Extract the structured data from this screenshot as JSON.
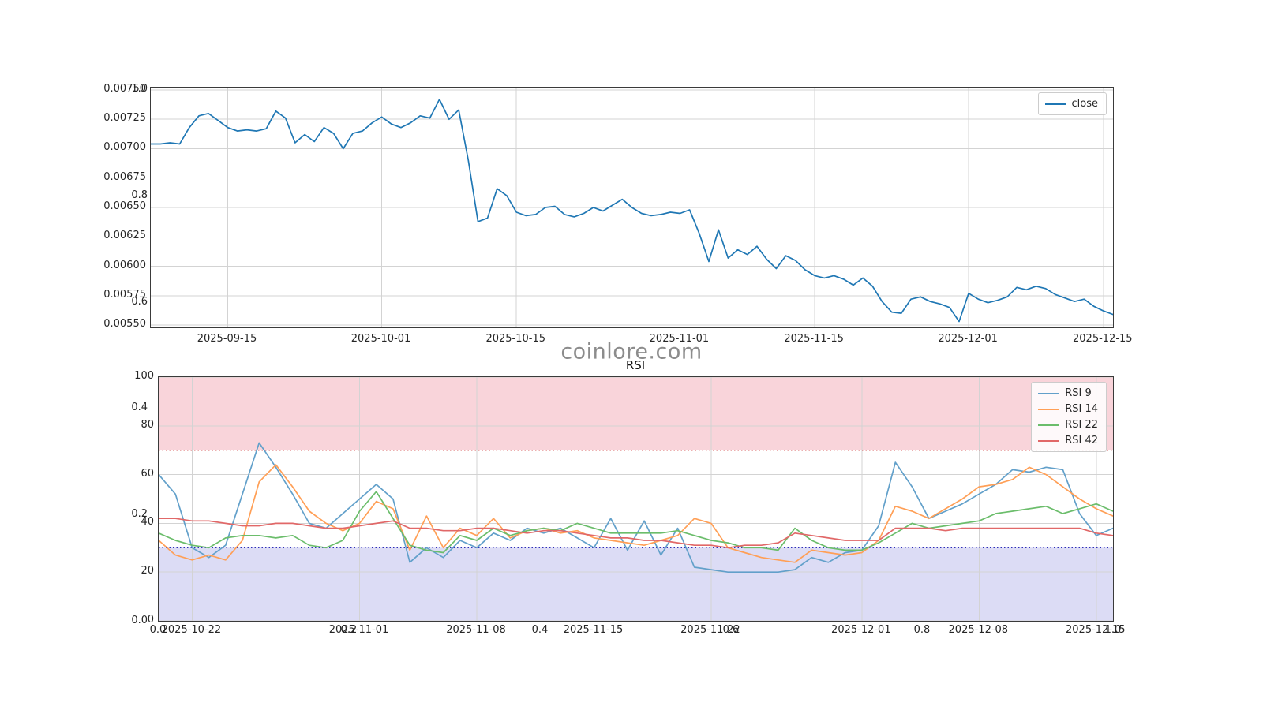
{
  "watermark": "coinlore.com",
  "colors": {
    "grid": "#d3d3d3",
    "spine": "#3a3a3a",
    "tick_text": "#262626",
    "watermark_text": "#8c8c8c",
    "background": "#ffffff"
  },
  "ghost_axis": {
    "left_labels": [
      "1.0",
      "0.8",
      "0.6",
      "0.4",
      "0.2",
      "0.0"
    ],
    "bottom_labels": [
      "0.0",
      "0.2",
      "0.4",
      "0.6",
      "0.8",
      "1.0"
    ]
  },
  "chart_data": [
    {
      "id": "price",
      "type": "line",
      "title": "",
      "grid": true,
      "legend_position": "upper right",
      "ylim": [
        0.00548,
        0.00752
      ],
      "yticks": [
        0.0055,
        0.00575,
        0.006,
        0.00625,
        0.0065,
        0.00675,
        0.007,
        0.00725,
        0.0075
      ],
      "ytick_labels": [
        "0.00550",
        "0.00575",
        "0.00600",
        "0.00625",
        "0.00650",
        "0.00675",
        "0.00700",
        "0.00725",
        "0.00750"
      ],
      "xtick_labels": [
        "2025-09-15",
        "2025-10-01",
        "2025-10-15",
        "2025-11-01",
        "2025-11-15",
        "2025-12-01",
        "2025-12-15"
      ],
      "xtick_indices": [
        8,
        24,
        38,
        55,
        69,
        85,
        99
      ],
      "x_dates": [
        "2025-09-07",
        "2025-09-08",
        "2025-09-09",
        "2025-09-10",
        "2025-09-11",
        "2025-09-12",
        "2025-09-13",
        "2025-09-14",
        "2025-09-15",
        "2025-09-16",
        "2025-09-17",
        "2025-09-18",
        "2025-09-19",
        "2025-09-20",
        "2025-09-21",
        "2025-09-22",
        "2025-09-23",
        "2025-09-24",
        "2025-09-25",
        "2025-09-26",
        "2025-09-27",
        "2025-09-28",
        "2025-09-29",
        "2025-09-30",
        "2025-10-01",
        "2025-10-02",
        "2025-10-03",
        "2025-10-04",
        "2025-10-05",
        "2025-10-06",
        "2025-10-07",
        "2025-10-08",
        "2025-10-09",
        "2025-10-10",
        "2025-10-11",
        "2025-10-12",
        "2025-10-13",
        "2025-10-14",
        "2025-10-15",
        "2025-10-16",
        "2025-10-17",
        "2025-10-18",
        "2025-10-19",
        "2025-10-20",
        "2025-10-21",
        "2025-10-22",
        "2025-10-23",
        "2025-10-24",
        "2025-10-25",
        "2025-10-26",
        "2025-10-27",
        "2025-10-28",
        "2025-10-29",
        "2025-10-30",
        "2025-10-31",
        "2025-11-01",
        "2025-11-02",
        "2025-11-03",
        "2025-11-04",
        "2025-11-05",
        "2025-11-06",
        "2025-11-07",
        "2025-11-08",
        "2025-11-09",
        "2025-11-10",
        "2025-11-11",
        "2025-11-12",
        "2025-11-13",
        "2025-11-14",
        "2025-11-15",
        "2025-11-16",
        "2025-11-17",
        "2025-11-18",
        "2025-11-19",
        "2025-11-20",
        "2025-11-21",
        "2025-11-22",
        "2025-11-23",
        "2025-11-24",
        "2025-11-25",
        "2025-11-26",
        "2025-11-27",
        "2025-11-28",
        "2025-11-29",
        "2025-11-30",
        "2025-12-01",
        "2025-12-02",
        "2025-12-03",
        "2025-12-04",
        "2025-12-05",
        "2025-12-06",
        "2025-12-07",
        "2025-12-08",
        "2025-12-09",
        "2025-12-10",
        "2025-12-11",
        "2025-12-12",
        "2025-12-13",
        "2025-12-14",
        "2025-12-15",
        "2025-12-16"
      ],
      "series": [
        {
          "name": "close",
          "color": "#1f77b4",
          "values": [
            0.00704,
            0.00704,
            0.00705,
            0.00704,
            0.00718,
            0.00728,
            0.0073,
            0.00724,
            0.00718,
            0.00715,
            0.00716,
            0.00715,
            0.00717,
            0.00732,
            0.00726,
            0.00705,
            0.00712,
            0.00706,
            0.00718,
            0.00713,
            0.007,
            0.00713,
            0.00715,
            0.00722,
            0.00727,
            0.00721,
            0.00718,
            0.00722,
            0.00728,
            0.00726,
            0.00742,
            0.00725,
            0.00733,
            0.0069,
            0.00638,
            0.00641,
            0.00666,
            0.0066,
            0.00646,
            0.00643,
            0.00644,
            0.0065,
            0.00651,
            0.00644,
            0.00642,
            0.00645,
            0.0065,
            0.00647,
            0.00652,
            0.00657,
            0.0065,
            0.00645,
            0.00643,
            0.00644,
            0.00646,
            0.00645,
            0.00648,
            0.00628,
            0.00604,
            0.00631,
            0.00607,
            0.00614,
            0.0061,
            0.00617,
            0.00606,
            0.00598,
            0.00609,
            0.00605,
            0.00597,
            0.00592,
            0.0059,
            0.00592,
            0.00589,
            0.00584,
            0.0059,
            0.00583,
            0.0057,
            0.00561,
            0.0056,
            0.00572,
            0.00574,
            0.0057,
            0.00568,
            0.00565,
            0.00553,
            0.00577,
            0.00572,
            0.00569,
            0.00571,
            0.00574,
            0.00582,
            0.0058,
            0.00583,
            0.00581,
            0.00576,
            0.00573,
            0.0057,
            0.00572,
            0.00566,
            0.00562,
            0.00559
          ]
        }
      ]
    },
    {
      "id": "rsi",
      "type": "line",
      "title": "RSI",
      "grid": true,
      "legend_position": "upper right",
      "ylim": [
        0,
        100
      ],
      "yticks": [
        0,
        20,
        40,
        60,
        80,
        100
      ],
      "ytick_labels": [
        "0",
        "20",
        "40",
        "60",
        "80",
        "100"
      ],
      "xtick_labels": [
        "2025-10-22",
        "2025-11-01",
        "2025-11-08",
        "2025-11-15",
        "2025-11-22",
        "2025-12-01",
        "2025-12-08",
        "2025-12-15"
      ],
      "xtick_indices": [
        2,
        12,
        19,
        26,
        33,
        42,
        49,
        56
      ],
      "bands": [
        {
          "name": "overbought-band",
          "from": 70,
          "to": 100,
          "color": "#f9d4da"
        },
        {
          "name": "oversold-band",
          "from": 0,
          "to": 30,
          "color": "#dcdcf5"
        }
      ],
      "levels": [
        {
          "name": "overbought-line",
          "value": 70,
          "color": "#cc2b2b"
        },
        {
          "name": "oversold-line",
          "value": 30,
          "color": "#2e2eb8"
        }
      ],
      "x_dates": [
        "2025-10-20",
        "2025-10-21",
        "2025-10-22",
        "2025-10-23",
        "2025-10-24",
        "2025-10-25",
        "2025-10-26",
        "2025-10-27",
        "2025-10-28",
        "2025-10-29",
        "2025-10-30",
        "2025-10-31",
        "2025-11-01",
        "2025-11-02",
        "2025-11-03",
        "2025-11-04",
        "2025-11-05",
        "2025-11-06",
        "2025-11-07",
        "2025-11-08",
        "2025-11-09",
        "2025-11-10",
        "2025-11-11",
        "2025-11-12",
        "2025-11-13",
        "2025-11-14",
        "2025-11-15",
        "2025-11-16",
        "2025-11-17",
        "2025-11-18",
        "2025-11-19",
        "2025-11-20",
        "2025-11-21",
        "2025-11-22",
        "2025-11-23",
        "2025-11-24",
        "2025-11-25",
        "2025-11-26",
        "2025-11-27",
        "2025-11-28",
        "2025-11-29",
        "2025-11-30",
        "2025-12-01",
        "2025-12-02",
        "2025-12-03",
        "2025-12-04",
        "2025-12-05",
        "2025-12-06",
        "2025-12-07",
        "2025-12-08",
        "2025-12-09",
        "2025-12-10",
        "2025-12-11",
        "2025-12-12",
        "2025-12-13",
        "2025-12-14",
        "2025-12-15",
        "2025-12-16"
      ],
      "series": [
        {
          "name": "RSI 9",
          "color": "#62a0ca",
          "values": [
            60,
            52,
            30,
            26,
            31,
            52,
            73,
            63,
            52,
            40,
            38,
            44,
            50,
            56,
            50,
            24,
            30,
            26,
            33,
            30,
            36,
            33,
            38,
            36,
            38,
            34,
            30,
            42,
            29,
            41,
            27,
            38,
            22,
            21,
            20,
            20,
            20,
            20,
            21,
            26,
            24,
            28,
            29,
            39,
            65,
            55,
            42,
            45,
            48,
            52,
            56,
            62,
            61,
            63,
            62,
            44,
            35,
            38
          ]
        },
        {
          "name": "RSI 14",
          "color": "#ff9f56",
          "values": [
            33,
            27,
            25,
            27,
            25,
            33,
            57,
            64,
            55,
            45,
            40,
            37,
            40,
            49,
            46,
            29,
            43,
            30,
            38,
            35,
            42,
            34,
            37,
            38,
            36,
            37,
            34,
            33,
            32,
            31,
            33,
            35,
            42,
            40,
            30,
            28,
            26,
            25,
            24,
            29,
            28,
            27,
            28,
            33,
            47,
            45,
            42,
            46,
            50,
            55,
            56,
            58,
            63,
            60,
            55,
            50,
            46,
            43
          ]
        },
        {
          "name": "RSI 22",
          "color": "#6bbd6b",
          "values": [
            36,
            33,
            31,
            30,
            34,
            35,
            35,
            34,
            35,
            31,
            30,
            33,
            45,
            53,
            42,
            31,
            29,
            28,
            35,
            33,
            38,
            35,
            37,
            38,
            37,
            40,
            38,
            36,
            36,
            36,
            36,
            37,
            35,
            33,
            32,
            30,
            30,
            29,
            38,
            33,
            30,
            29,
            29,
            32,
            36,
            40,
            38,
            39,
            40,
            41,
            44,
            45,
            46,
            47,
            44,
            46,
            48,
            45
          ]
        },
        {
          "name": "RSI 42",
          "color": "#e16868",
          "values": [
            42,
            42,
            41,
            41,
            40,
            39,
            39,
            40,
            40,
            39,
            38,
            38,
            39,
            40,
            41,
            38,
            38,
            37,
            37,
            38,
            38,
            37,
            36,
            37,
            37,
            36,
            35,
            34,
            34,
            33,
            33,
            32,
            31,
            31,
            30,
            31,
            31,
            32,
            36,
            35,
            34,
            33,
            33,
            33,
            38,
            38,
            38,
            37,
            38,
            38,
            38,
            38,
            38,
            38,
            38,
            38,
            36,
            35
          ]
        }
      ]
    }
  ]
}
